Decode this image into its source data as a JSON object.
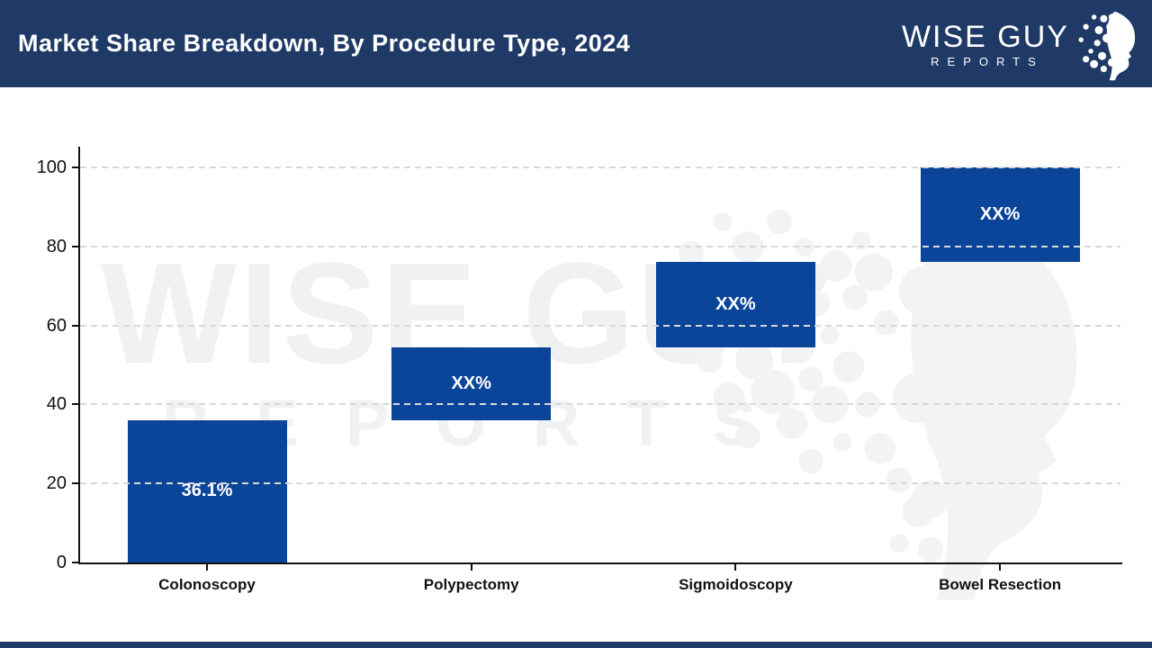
{
  "header": {
    "title": "Market Share Breakdown, By Procedure Type, 2024",
    "bg_color": "#1f3a66",
    "logo": {
      "line1": "WISE GUY",
      "line2": "REPORTS"
    }
  },
  "watermark": {
    "line1": "WISE GUY",
    "line2": "REPORTS"
  },
  "footer": {
    "bg_color": "#1f3a66"
  },
  "chart_data": {
    "type": "bar",
    "subtype": "floating-waterfall",
    "title": "Market Share Breakdown, By Procedure Type, 2024",
    "categories": [
      "Colonoscopy",
      "Polypectomy",
      "Sigmoidoscopy",
      "Bowel Resection"
    ],
    "segments": [
      {
        "category": "Colonoscopy",
        "start": 0,
        "end": 36.1,
        "label": "36.1%"
      },
      {
        "category": "Polypectomy",
        "start": 36.1,
        "end": 54.5,
        "label": "XX%"
      },
      {
        "category": "Sigmoidoscopy",
        "start": 54.5,
        "end": 76,
        "label": "XX%"
      },
      {
        "category": "Bowel Resection",
        "start": 76,
        "end": 100,
        "label": "XX%"
      }
    ],
    "ylim": [
      0,
      100
    ],
    "yticks": [
      0,
      20,
      40,
      60,
      80,
      100
    ],
    "grid": "horizontal-dashed",
    "bar_color": "#0b459a",
    "value_label_color": "#ffffff",
    "axis_color": "#111111",
    "gridline_color": "#d8d8d8"
  }
}
